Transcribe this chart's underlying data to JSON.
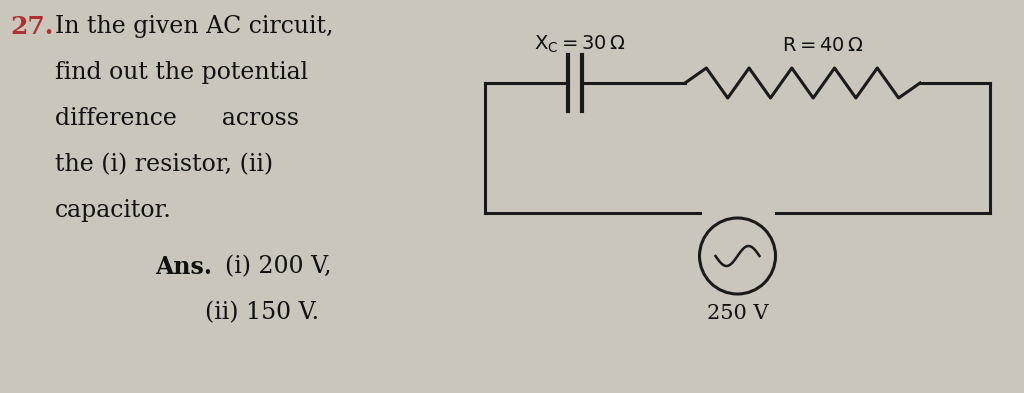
{
  "bg_color": "#cbc6bc",
  "circuit_bg": "#c8c3b8",
  "number": "27.",
  "number_color": "#b03030",
  "text_color": "#111111",
  "v_label": "250 V",
  "xc_label": "X_C=30Ω",
  "r_label": "R=40Ω",
  "question_lines": [
    "In the given AC circuit,",
    "find out the potential",
    "difference      across",
    "the (i) resistor, (ii)",
    "capacitor."
  ],
  "ans_label": "Ans.",
  "ans_i": "(i) 200 V,",
  "ans_ii": "(ii) 150 V.",
  "font_size_main": 17,
  "font_size_circuit": 14,
  "wire_color": "#1a1a1a",
  "wire_lw": 2.2
}
